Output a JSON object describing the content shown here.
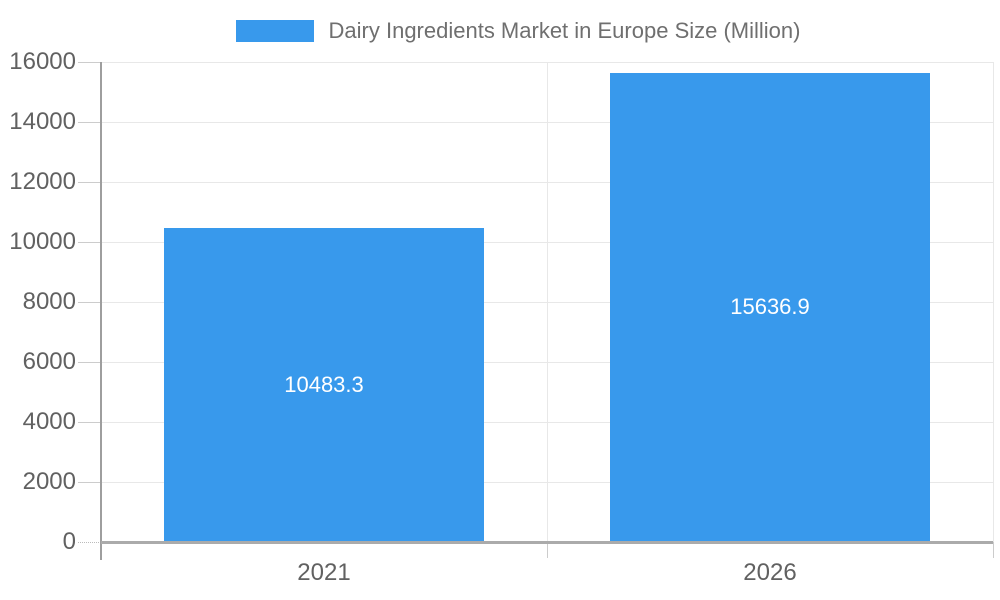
{
  "chart_data": {
    "type": "bar",
    "title": "Dairy Ingredients Market in Europe Size (Million)",
    "categories": [
      "2021",
      "2026"
    ],
    "values": [
      10483.3,
      15636.9
    ],
    "value_labels": [
      "10483.3",
      "15636.9"
    ],
    "ylim": [
      0,
      16000
    ],
    "ytick_step": 2000,
    "ytick_labels": [
      "0",
      "2000",
      "4000",
      "6000",
      "8000",
      "10000",
      "12000",
      "14000",
      "16000"
    ],
    "xlabel": "",
    "ylabel": "",
    "grid": true,
    "legend_position": "top",
    "colors": {
      "bar": "#3899ec",
      "value_label": "#ffffff",
      "legend_text": "#6f6f6f",
      "tick_text": "#616161",
      "grid_line": "#e8e8e8",
      "tick_line": "#cccccc",
      "zero_tick_line": "#bbbbbb",
      "y_axis_line": "#9e9e9e",
      "x_axis_line": "#ababab",
      "background": "#ffffff"
    }
  }
}
